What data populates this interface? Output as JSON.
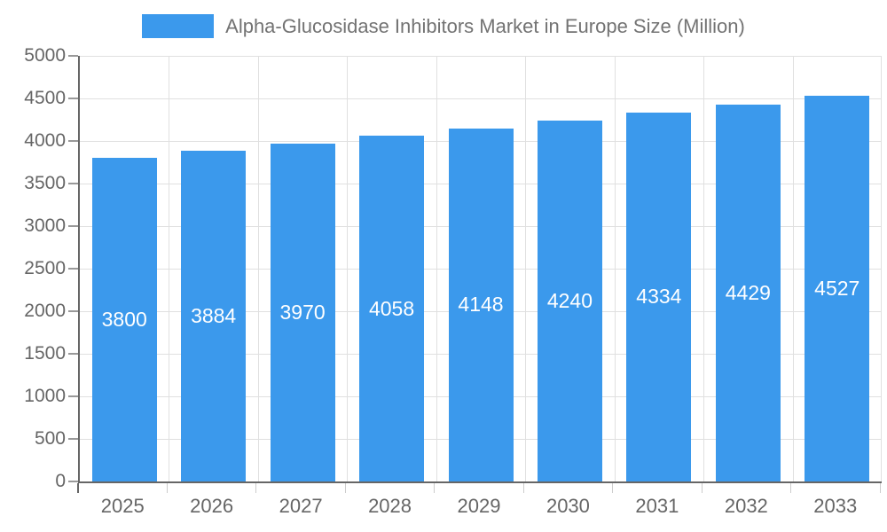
{
  "chart_data": {
    "type": "bar",
    "title": "Alpha-Glucosidase Inhibitors Market in Europe Size (Million)",
    "categories": [
      "2025",
      "2026",
      "2027",
      "2028",
      "2029",
      "2030",
      "2031",
      "2032",
      "2033"
    ],
    "values": [
      3800,
      3884,
      3970,
      4058,
      4148,
      4240,
      4334,
      4429,
      4527
    ],
    "xlabel": "",
    "ylabel": "",
    "ylim": [
      0,
      5000
    ],
    "yticks": [
      0,
      500,
      1000,
      1500,
      2000,
      2500,
      3000,
      3500,
      4000,
      4500,
      5000
    ],
    "grid": true,
    "legend_position": "top",
    "bar_labels_shown": true
  },
  "colors": {
    "bar": "#3B99EC",
    "bar_label": "#FFFFFF",
    "grid": "#E0E0E0",
    "axis": "#666666",
    "tick": "#999999",
    "minor_tick": "#CCCCCC",
    "tick_label": "#666666",
    "title": "#737373",
    "background": "#FFFFFF"
  }
}
